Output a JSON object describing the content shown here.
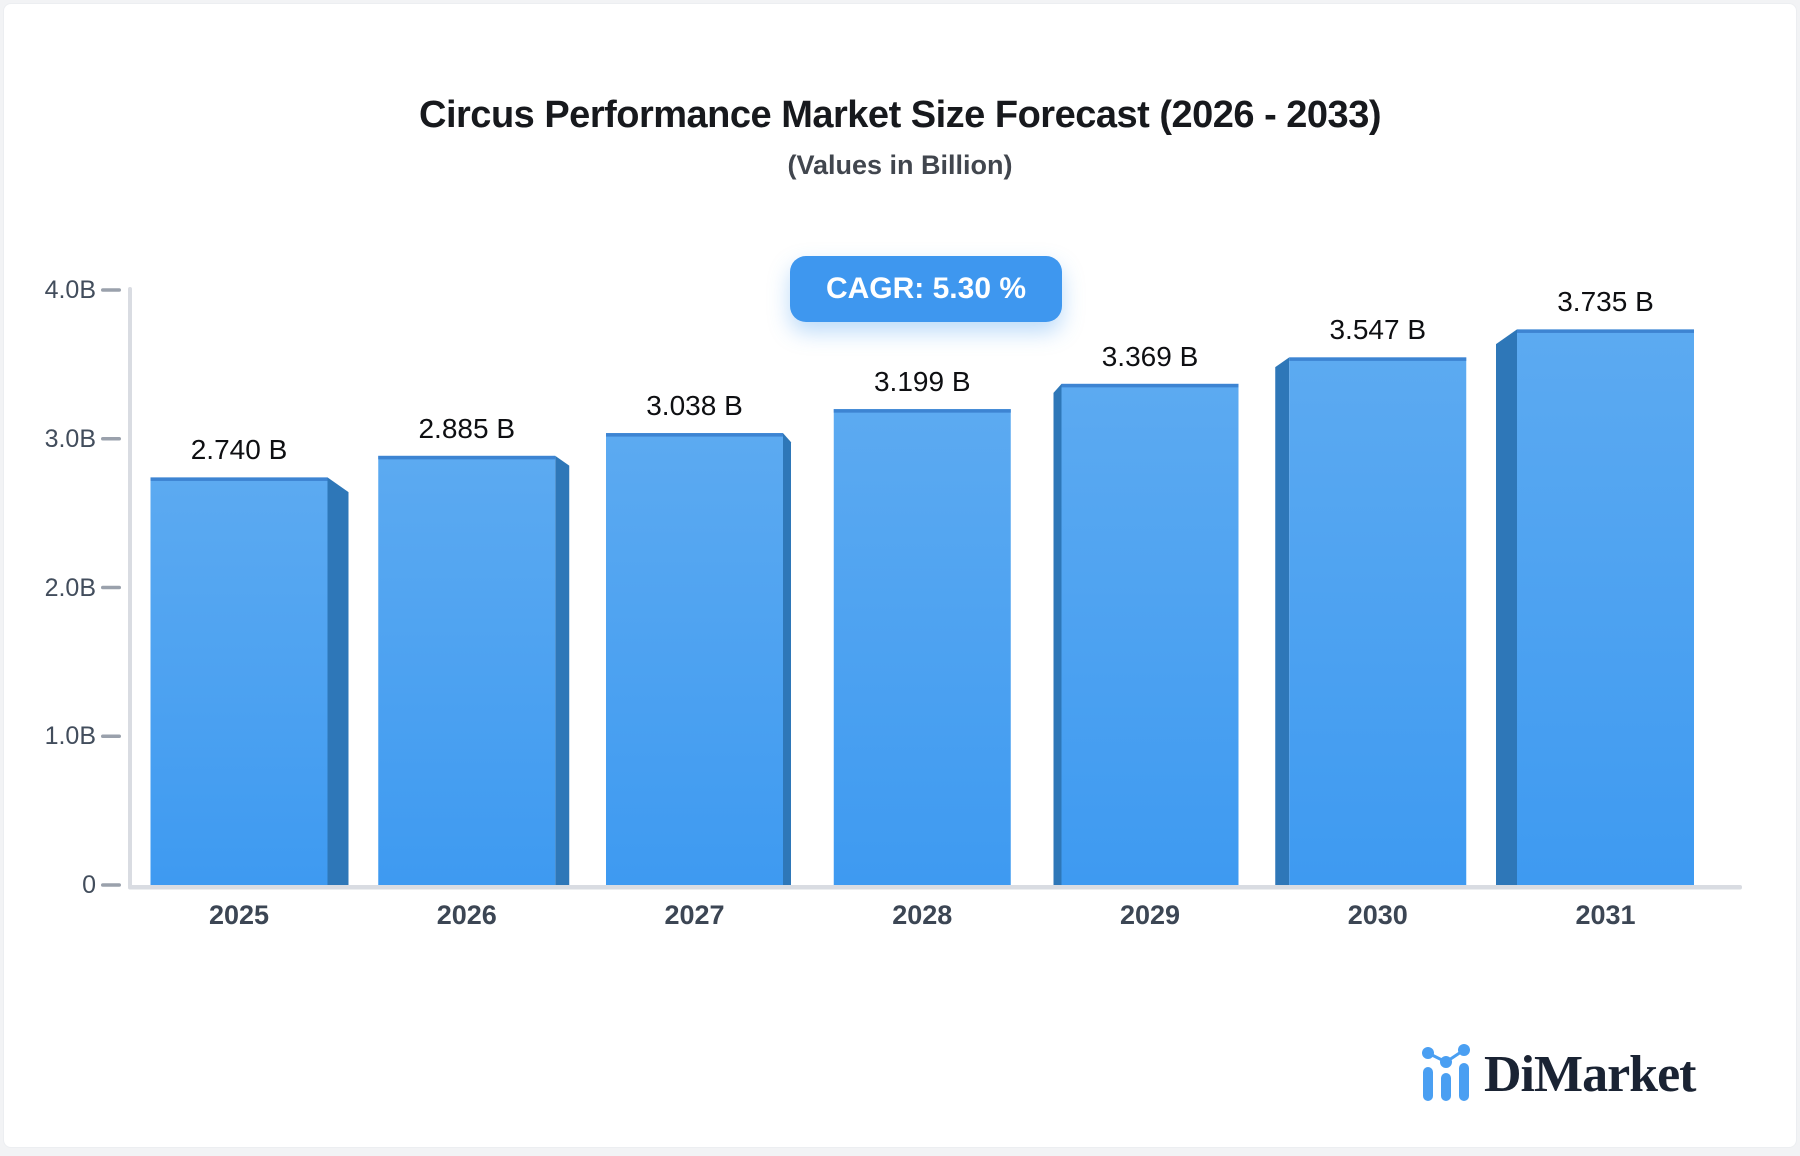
{
  "header": {
    "title": "Circus Performance Market Size Forecast (2026 - 2033)",
    "subtitle": "(Values in Billion)"
  },
  "badge": {
    "label": "CAGR: 5.30 %",
    "background": "#3e97ef",
    "text_color": "#ffffff"
  },
  "chart_data": {
    "type": "bar",
    "title": "Circus Performance Market Size Forecast (2026 - 2033)",
    "subtitle": "(Values in Billion)",
    "unit": "Billion",
    "categories": [
      "2025",
      "2026",
      "2027",
      "2028",
      "2029",
      "2030",
      "2031"
    ],
    "values": [
      2.74,
      2.885,
      3.038,
      3.199,
      3.369,
      3.547,
      3.735
    ],
    "value_labels": [
      "2.740 B",
      "2.885 B",
      "3.038 B",
      "3.199 B",
      "3.369 B",
      "3.547 B",
      "3.735 B"
    ],
    "cagr_percent": "5.30 %",
    "ylim": [
      0,
      4.0
    ],
    "yticks": [
      {
        "label": "4.0B",
        "value": 4.0
      },
      {
        "label": "3.0B",
        "value": 3.0
      },
      {
        "label": "2.0B",
        "value": 2.0
      },
      {
        "label": "1.0B",
        "value": 1.0
      },
      {
        "label": "0",
        "value": 0.0
      }
    ],
    "grid": false,
    "legend": "none",
    "bar_color_top": "#5caaf1",
    "bar_color_bottom": "#3e9af1",
    "bar_top_edge_color": "#3d84d2",
    "bar_side_color": "#2e77b8"
  },
  "axis": {
    "line_color": "#d9dce2",
    "tick_color": "#9aa1ac",
    "label_color": "#424d5c"
  },
  "logo": {
    "text": "DiMarket",
    "icon": "bar-chart-logo-icon",
    "icon_color": "#4a9ff2",
    "text_color": "#1a2333"
  }
}
